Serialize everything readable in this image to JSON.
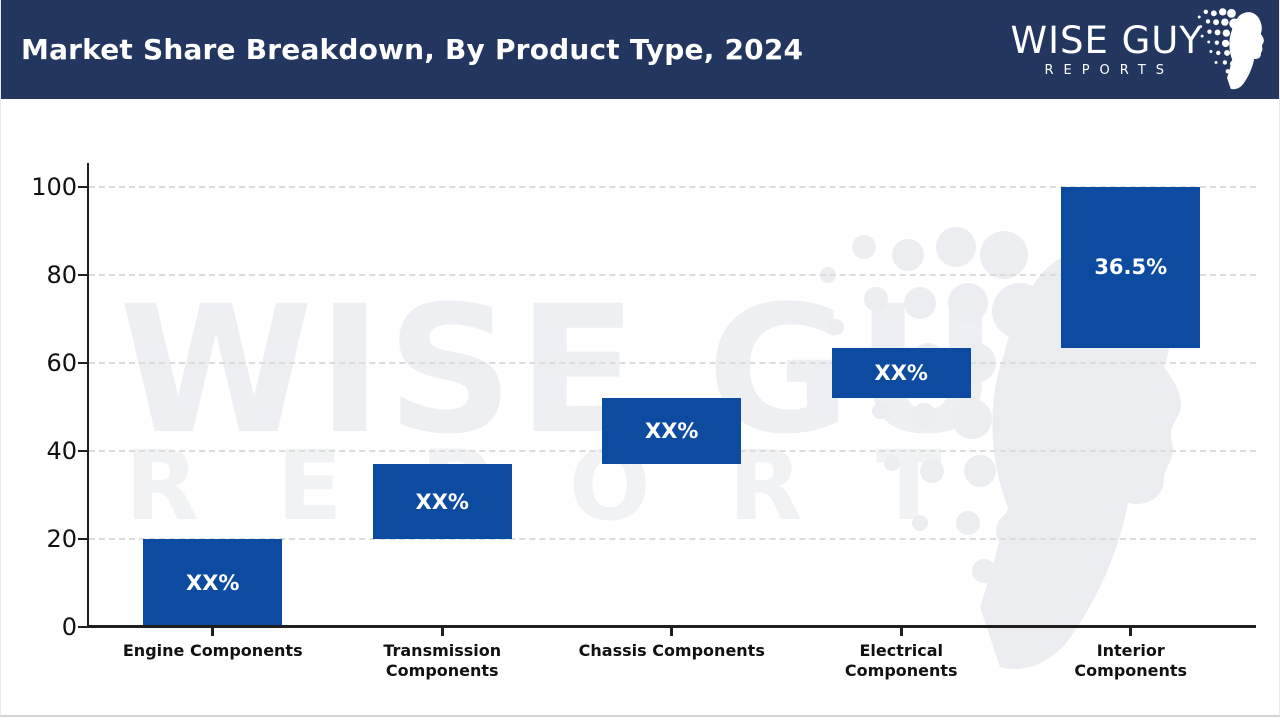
{
  "header": {
    "title": "Market Share Breakdown, By Product Type, 2024",
    "background_color": "#22365f",
    "logo": {
      "line1": "WISE GUY",
      "line2": "REPORTS",
      "head_icon": "dotted-head-profile"
    }
  },
  "watermark": {
    "line1": "WISE GUY",
    "line2": "REPORTS"
  },
  "chart_data": {
    "type": "bar",
    "subtype": "waterfall",
    "title": "Market Share Breakdown, By Product Type, 2024",
    "categories": [
      "Engine Components",
      "Transmission Components",
      "Chassis Components",
      "Electrical Components",
      "Interior Components"
    ],
    "category_label_lines": [
      [
        "Engine Components"
      ],
      [
        "Transmission",
        "Components"
      ],
      [
        "Chassis Components"
      ],
      [
        "Electrical",
        "Components"
      ],
      [
        "Interior",
        "Components"
      ]
    ],
    "series": [
      {
        "name": "Market Share (%)",
        "segments": [
          {
            "category": "Engine Components",
            "start": 0,
            "end": 20,
            "value": 20,
            "label": "XX%"
          },
          {
            "category": "Transmission Components",
            "start": 20,
            "end": 37,
            "value": 17,
            "label": "XX%"
          },
          {
            "category": "Chassis Components",
            "start": 37,
            "end": 52,
            "value": 15,
            "label": "XX%"
          },
          {
            "category": "Electrical Components",
            "start": 52,
            "end": 63.5,
            "value": 11.5,
            "label": "XX%"
          },
          {
            "category": "Interior Components",
            "start": 63.5,
            "end": 100,
            "value": 36.5,
            "label": "36.5%"
          }
        ]
      }
    ],
    "values": [
      20,
      17,
      15,
      11.5,
      36.5
    ],
    "bar_labels": [
      "XX%",
      "XX%",
      "XX%",
      "XX%",
      "36.5%"
    ],
    "yticks": [
      0,
      20,
      40,
      60,
      80,
      100
    ],
    "ylim": [
      0,
      105
    ],
    "xlabel": "",
    "ylabel": "",
    "grid": "horizontal-dashed",
    "legend": "none",
    "bar_color": "#0d4ba1",
    "bar_label_color": "#ffffff",
    "axis_color": "#1f1f1f",
    "gridline_color": "#dcdcdc",
    "tick_label_color": "#111111"
  }
}
